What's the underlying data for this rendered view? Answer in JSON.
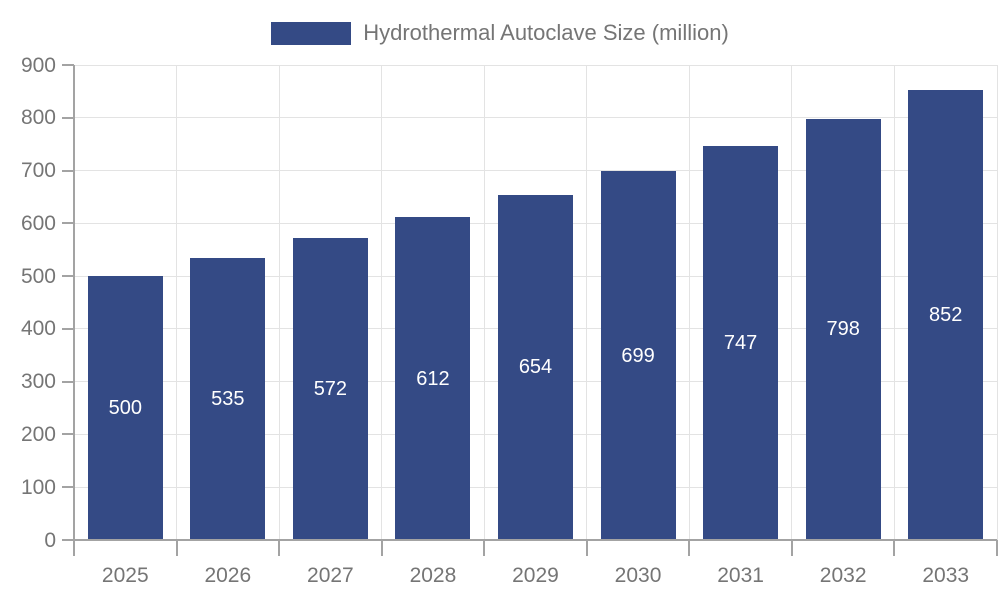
{
  "legend": {
    "label": "Hydrothermal Autoclave Size (million)"
  },
  "chart_data": {
    "type": "bar",
    "title": "Hydrothermal Autoclave Size (million)",
    "categories": [
      "2025",
      "2026",
      "2027",
      "2028",
      "2029",
      "2030",
      "2031",
      "2032",
      "2033"
    ],
    "values": [
      500,
      535,
      572,
      612,
      654,
      699,
      747,
      798,
      852
    ],
    "xlabel": "",
    "ylabel": "",
    "ylim": [
      0,
      900
    ],
    "ytick_step": 100,
    "ytick_labels": [
      "0",
      "100",
      "200",
      "300",
      "400",
      "500",
      "600",
      "700",
      "800",
      "900"
    ],
    "grid": true,
    "legend_position": "top-center",
    "colors": {
      "bar": "#344a85",
      "value_label": "#ffffff",
      "grid": "#e3e3e3",
      "axis": "#a3a3a3",
      "tick_label": "#757575"
    }
  }
}
